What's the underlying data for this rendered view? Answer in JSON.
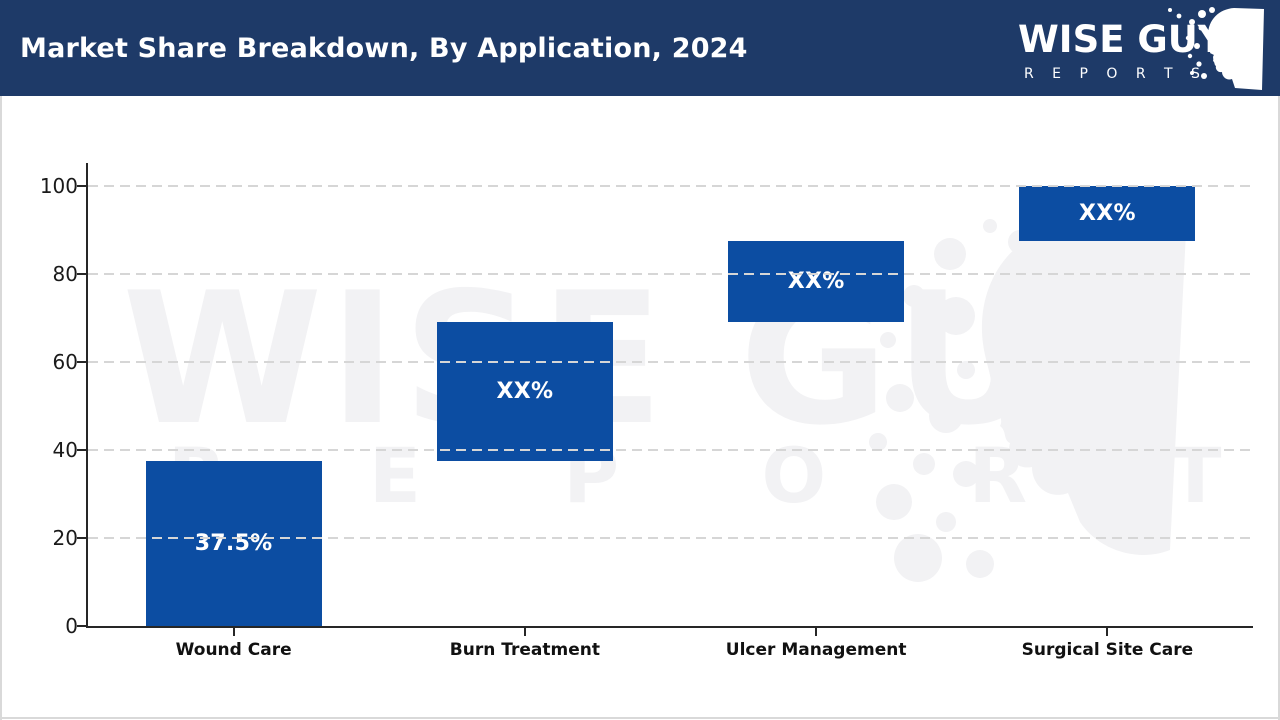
{
  "header": {
    "title": "Market Share Breakdown, By Application, 2024",
    "background_color": "#1e3a68",
    "logo": {
      "line1": "WISE GUY",
      "line2": "R E P O R T S"
    }
  },
  "watermark": {
    "line1": "WISE GUY",
    "line2": "R E P O R T S"
  },
  "chart_data": {
    "type": "bar",
    "subtype": "waterfall",
    "title": "Market Share Breakdown, By Application, 2024",
    "categories": [
      "Wound Care",
      "Burn Treatment",
      "Ulcer Management",
      "Surgical Site Care"
    ],
    "bars": [
      {
        "category": "Wound Care",
        "start": 0,
        "end": 37.5,
        "label": "37.5%"
      },
      {
        "category": "Burn Treatment",
        "start": 37.5,
        "end": 69,
        "label": "XX%"
      },
      {
        "category": "Ulcer Management",
        "start": 69,
        "end": 87.5,
        "label": "XX%"
      },
      {
        "category": "Surgical Site Care",
        "start": 87.5,
        "end": 100,
        "label": "XX%"
      }
    ],
    "y_ticks": [
      0,
      20,
      40,
      60,
      80,
      100
    ],
    "ylim": [
      0,
      100
    ],
    "xlabel": "",
    "ylabel": "",
    "bar_color": "#0c4da2",
    "bar_label_color": "#ffffff",
    "grid": "dashed-horizontal",
    "legend": "none"
  }
}
